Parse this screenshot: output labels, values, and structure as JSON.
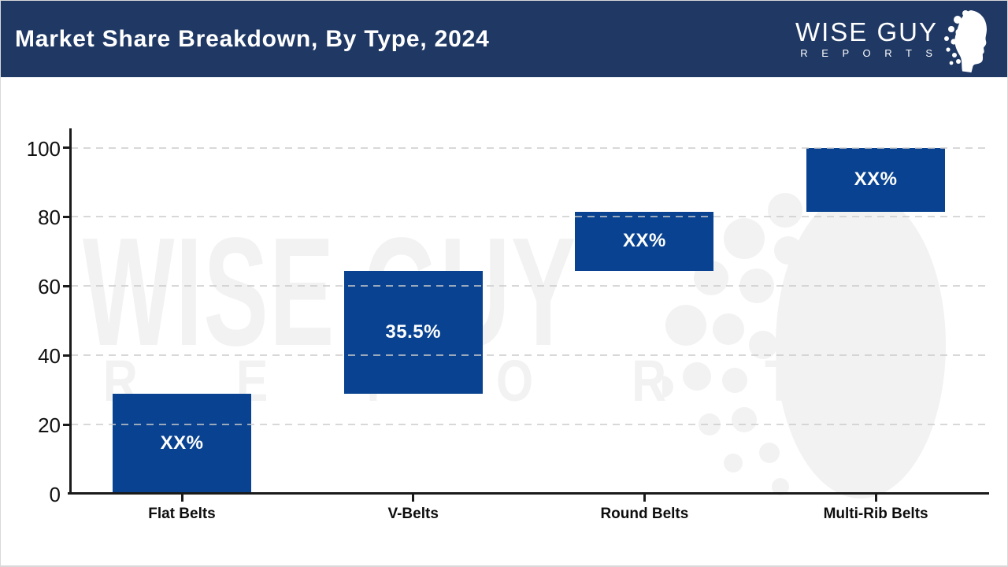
{
  "header": {
    "title": "Market Share Breakdown, By Type, 2024",
    "logo_line1": "WISE GUY",
    "logo_line2": "R E P O R T S"
  },
  "watermark": {
    "line1": "WISE GUY",
    "line2": "R E P O R T S"
  },
  "colors": {
    "header_bg": "#1f3864",
    "bar_fill": "#084290",
    "bar_label": "#ffffff",
    "watermark": "#f2f2f2",
    "gridline": "#cbcbcb",
    "axis": "#1a1a1a"
  },
  "chart_data": {
    "type": "bar",
    "subtype": "floating-waterfall",
    "title": "Market Share Breakdown, By Type, 2024",
    "xlabel": "",
    "ylabel": "",
    "ylim": [
      0,
      100
    ],
    "yticks": [
      0,
      20,
      40,
      60,
      80,
      100
    ],
    "grid": "horizontal-dashed",
    "legend": "none",
    "categories": [
      "Flat Belts",
      "V-Belts",
      "Round Belts",
      "Multi-Rib Belts"
    ],
    "segments": [
      {
        "category": "Flat Belts",
        "start": 0,
        "end": 29,
        "value_label": "XX%"
      },
      {
        "category": "V-Belts",
        "start": 29,
        "end": 64.5,
        "value_label": "35.5%"
      },
      {
        "category": "Round Belts",
        "start": 64.5,
        "end": 81.5,
        "value_label": "XX%"
      },
      {
        "category": "Multi-Rib Belts",
        "start": 81.5,
        "end": 100,
        "value_label": "XX%"
      }
    ]
  }
}
